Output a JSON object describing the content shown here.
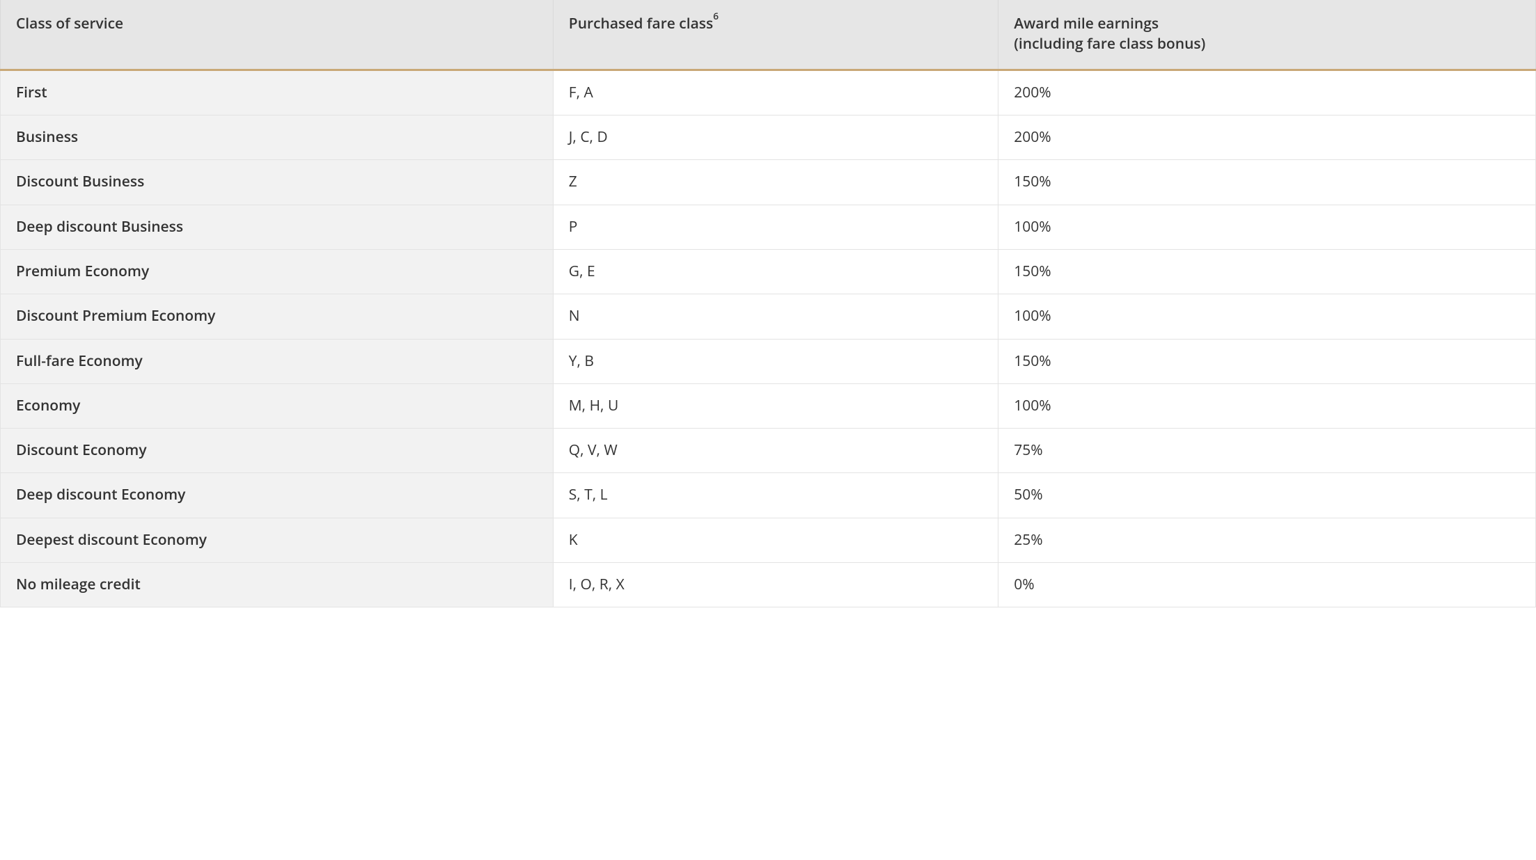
{
  "table": {
    "type": "table",
    "colors": {
      "header_bg": "#e6e6e6",
      "header_border": "#d9d9d9",
      "header_accent_border": "#c9a877",
      "label_cell_bg": "#f2f2f2",
      "cell_border": "#e3e3e3",
      "text": "#333333",
      "background": "#ffffff"
    },
    "typography": {
      "base_fontsize_pt": 16,
      "header_weight": 600,
      "label_weight": 600,
      "body_weight": 400
    },
    "column_widths_percent": [
      36,
      29,
      35
    ],
    "columns": [
      {
        "label": "Class of service",
        "footnote": ""
      },
      {
        "label": "Purchased fare class",
        "footnote": "6"
      },
      {
        "label": "Award mile earnings\n(including fare class bonus)",
        "footnote": ""
      }
    ],
    "rows": [
      {
        "service": "First",
        "fare": "F, A",
        "earn": "200%"
      },
      {
        "service": "Business",
        "fare": "J, C, D",
        "earn": "200%"
      },
      {
        "service": "Discount Business",
        "fare": "Z",
        "earn": "150%"
      },
      {
        "service": "Deep discount Business",
        "fare": "P",
        "earn": "100%"
      },
      {
        "service": "Premium Economy",
        "fare": "G, E",
        "earn": "150%"
      },
      {
        "service": "Discount Premium Economy",
        "fare": "N",
        "earn": "100%"
      },
      {
        "service": "Full-fare Economy",
        "fare": "Y, B",
        "earn": "150%"
      },
      {
        "service": "Economy",
        "fare": "M, H, U",
        "earn": "100%"
      },
      {
        "service": "Discount Economy",
        "fare": "Q, V, W",
        "earn": "75%"
      },
      {
        "service": "Deep discount Economy",
        "fare": "S, T, L",
        "earn": "50%"
      },
      {
        "service": "Deepest discount Economy",
        "fare": "K",
        "earn": "25%"
      },
      {
        "service": "No mileage credit",
        "fare": "I, O, R, X",
        "earn": "0%"
      }
    ]
  }
}
